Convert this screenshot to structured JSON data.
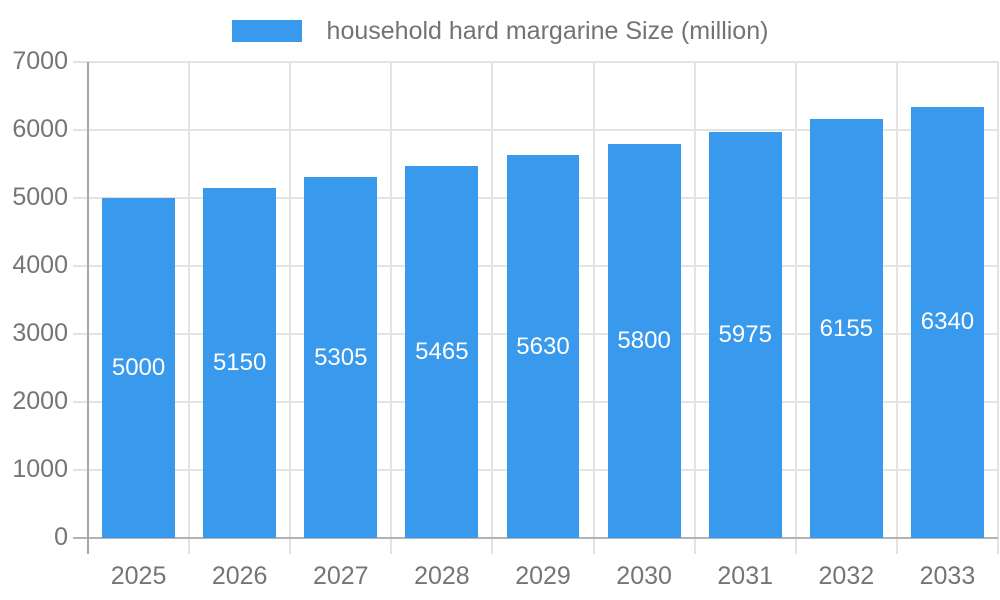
{
  "chart_data": {
    "type": "bar",
    "series_name": "household hard margarine Size (million)",
    "categories": [
      "2025",
      "2026",
      "2027",
      "2028",
      "2029",
      "2030",
      "2031",
      "2032",
      "2033"
    ],
    "values": [
      5000,
      5150,
      5305,
      5465,
      5630,
      5800,
      5975,
      6155,
      6340
    ],
    "title": "",
    "xlabel": "",
    "ylabel": "",
    "ylim": [
      0,
      7000
    ],
    "ytick_step": 1000,
    "yticks": [
      0,
      1000,
      2000,
      3000,
      4000,
      5000,
      6000,
      7000
    ],
    "grid": true,
    "legend_position": "top",
    "value_label_position": "inside-middle"
  },
  "colors": {
    "bar": "#3999EC",
    "grid_line": "#E3E3E3",
    "axis_line": "#A6A6A6",
    "zero_line": "#B3B3B3",
    "tick_label": "#757575",
    "value_label": "#FFFFFF",
    "legend_text": "#737373",
    "background": "#FFFFFF"
  }
}
